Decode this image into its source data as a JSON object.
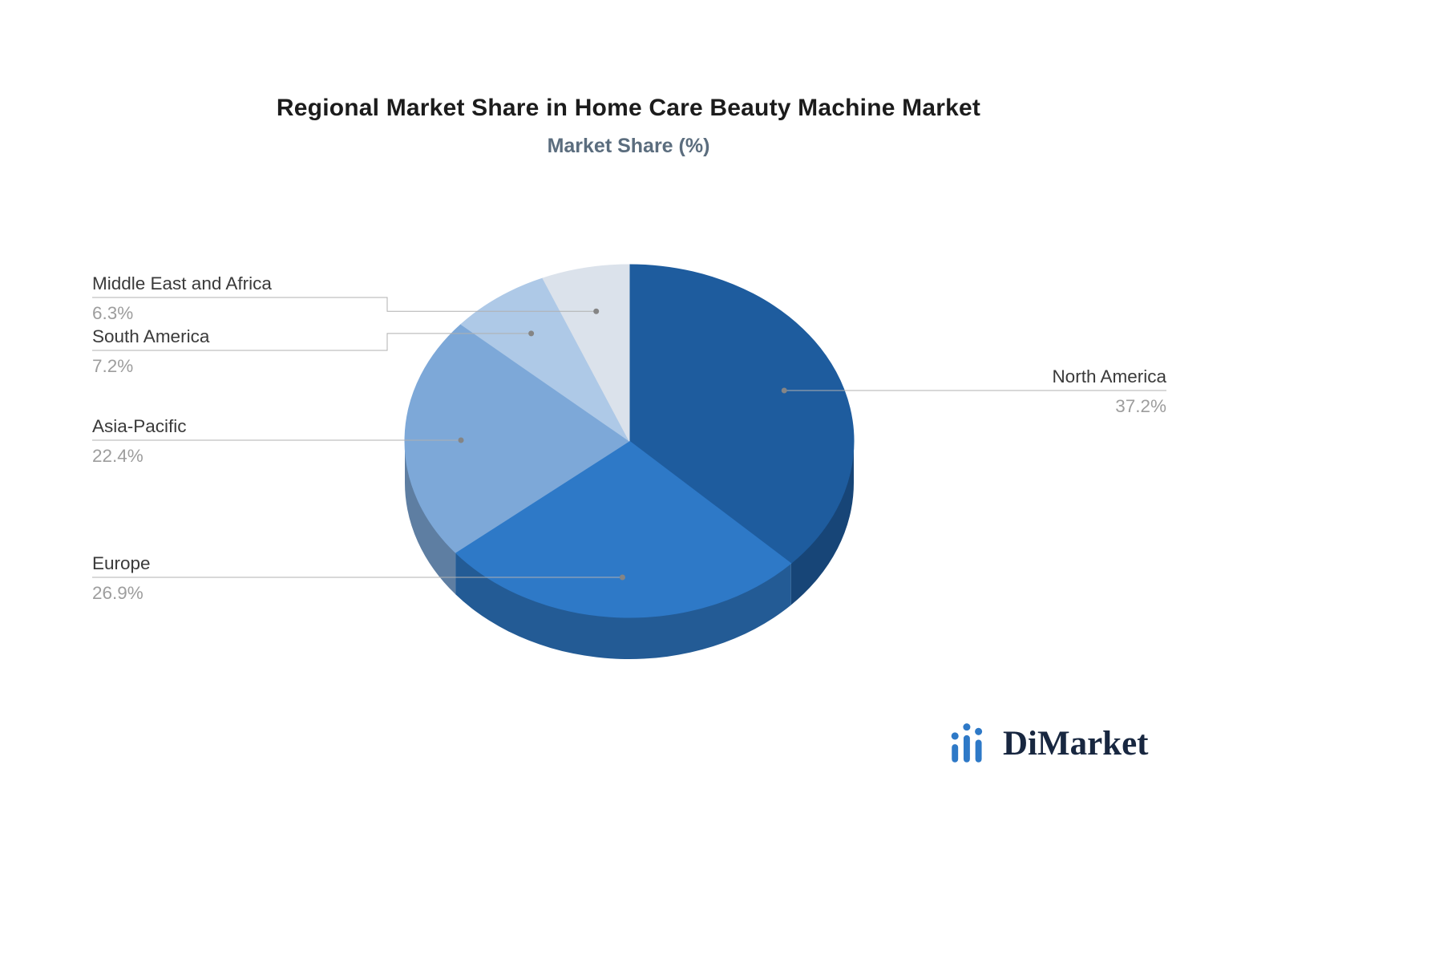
{
  "chart_data": {
    "type": "pie",
    "effect": "3d",
    "title": "Regional Market Share in Home Care Beauty Machine Market",
    "subtitle": "Market Share (%)",
    "unit": "%",
    "legend_position": "callout-labels",
    "slices": [
      {
        "label": "North America",
        "value": 37.2,
        "display": "37.2%",
        "color": "#1e5c9e"
      },
      {
        "label": "Europe",
        "value": 26.9,
        "display": "26.9%",
        "color": "#2e79c7"
      },
      {
        "label": "Asia-Pacific",
        "value": 22.4,
        "display": "22.4%",
        "color": "#7da8d8"
      },
      {
        "label": "South America",
        "value": 7.2,
        "display": "7.2%",
        "color": "#aec9e7"
      },
      {
        "label": "Middle East and Africa",
        "value": 6.3,
        "display": "6.3%",
        "color": "#dbe2eb"
      }
    ]
  },
  "branding": {
    "logo_text": "DiMarket",
    "logo_color": "#2e79c7",
    "text_color": "#182740"
  }
}
